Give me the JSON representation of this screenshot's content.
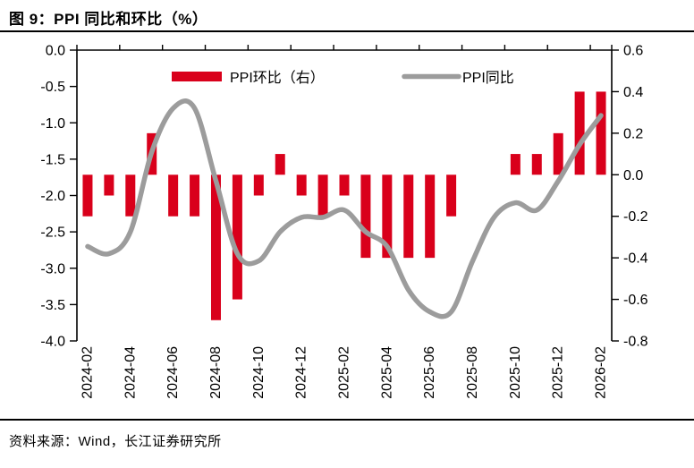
{
  "title": "图 9：PPI 同比和环比（%）",
  "footer": "资料来源：Wind，长江证券研究所",
  "legend": [
    {
      "label": "PPI环比（右）",
      "type": "bar"
    },
    {
      "label": "PPI同比",
      "type": "line"
    }
  ],
  "colors": {
    "bar": "#d9001b",
    "line": "#9c9c9c",
    "axis": "#000000",
    "text": "#000000"
  },
  "chart_data": {
    "type": "combo",
    "categories": [
      "2024-02",
      "2024-03",
      "2024-04",
      "2024-05",
      "2024-06",
      "2024-07",
      "2024-08",
      "2024-09",
      "2024-10",
      "2024-11",
      "2024-12",
      "2025-01",
      "2025-02",
      "2025-03",
      "2025-04",
      "2025-05",
      "2025-06",
      "2025-07",
      "2025-08",
      "2025-09",
      "2025-10",
      "2025-11",
      "2025-12",
      "2026-01",
      "2026-02"
    ],
    "series": [
      {
        "name": "PPI环比（右）",
        "type": "bar",
        "axis": "right",
        "values": [
          -0.2,
          -0.1,
          -0.2,
          0.2,
          -0.2,
          -0.2,
          -0.7,
          -0.6,
          -0.1,
          0.1,
          -0.1,
          -0.2,
          -0.1,
          -0.4,
          -0.4,
          -0.4,
          -0.4,
          -0.2,
          0.0,
          0.0,
          0.1,
          0.1,
          0.2,
          0.4,
          0.4
        ]
      },
      {
        "name": "PPI同比",
        "type": "line",
        "axis": "left",
        "values": [
          -2.7,
          -2.8,
          -2.5,
          -1.4,
          -0.8,
          -0.8,
          -1.8,
          -2.8,
          -2.9,
          -2.5,
          -2.3,
          -2.3,
          -2.2,
          -2.5,
          -2.7,
          -3.3,
          -3.6,
          -3.6,
          -2.9,
          -2.3,
          -2.1,
          -2.2,
          -1.8,
          -1.3,
          -0.9
        ]
      }
    ],
    "left_axis": {
      "min": -4.0,
      "max": 0.0,
      "ticks": [
        "0.0",
        "-0.5",
        "-1.0",
        "-1.5",
        "-2.0",
        "-2.5",
        "-3.0",
        "-3.5",
        "-4.0"
      ]
    },
    "right_axis": {
      "min": -0.8,
      "max": 0.6,
      "ticks": [
        "0.6",
        "0.4",
        "0.2",
        "0.0",
        "-0.2",
        "-0.4",
        "-0.6",
        "-0.8"
      ]
    },
    "x_tick_labels": [
      "2024-02",
      "2024-04",
      "2024-06",
      "2024-08",
      "2024-10",
      "2024-12",
      "2025-02",
      "2025-04",
      "2025-06",
      "2025-08",
      "2025-10",
      "2025-12",
      "2026-02"
    ],
    "grid": false,
    "legend_position": "top"
  }
}
